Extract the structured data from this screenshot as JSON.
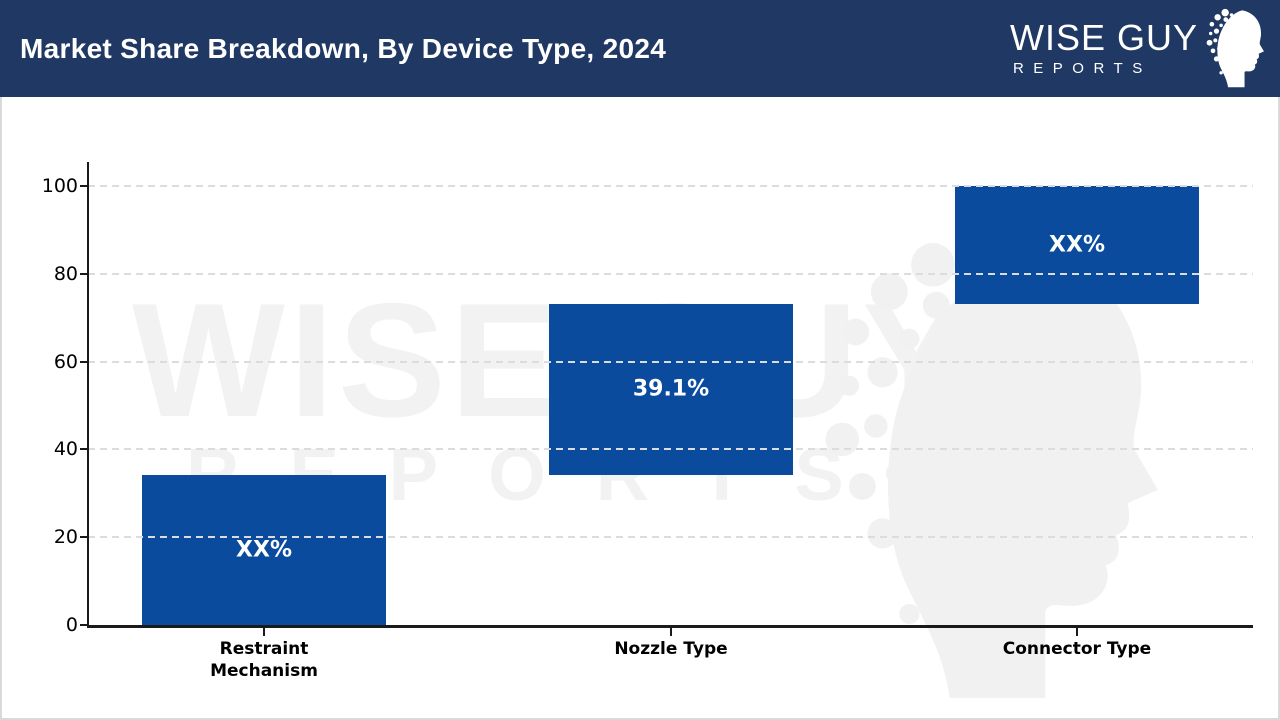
{
  "header": {
    "title": "Market Share Breakdown, By Device Type, 2024",
    "bg_color": "#203864",
    "logo": {
      "line1": "WISE GUY",
      "line2": "REPORTS"
    }
  },
  "watermark": {
    "line1": "WISE GUY",
    "line2": "REPORTS"
  },
  "chart_data": {
    "type": "bar",
    "variant": "floating-waterfall",
    "title": "Market Share Breakdown, By Device Type, 2024",
    "categories": [
      "Restraint Mechanism",
      "Nozzle Type",
      "Connector Type"
    ],
    "series": [
      {
        "name": "Market share (%)",
        "bases": [
          0,
          34.1,
          73.2
        ],
        "values": [
          34.1,
          39.1,
          26.8
        ],
        "bar_labels": [
          "XX%",
          "39.1%",
          "XX%"
        ]
      }
    ],
    "ylim": [
      0,
      100
    ],
    "yticks": [
      0,
      20,
      40,
      60,
      80,
      100
    ],
    "xlabel": "",
    "ylabel": "",
    "legend": "none",
    "grid": {
      "axis": "y",
      "style": "dashed",
      "color": "#dcdcdc"
    },
    "bar_color": "#0a4b9e",
    "bar_label_color": "#ffffff",
    "axis_color": "#1a1a1a"
  }
}
